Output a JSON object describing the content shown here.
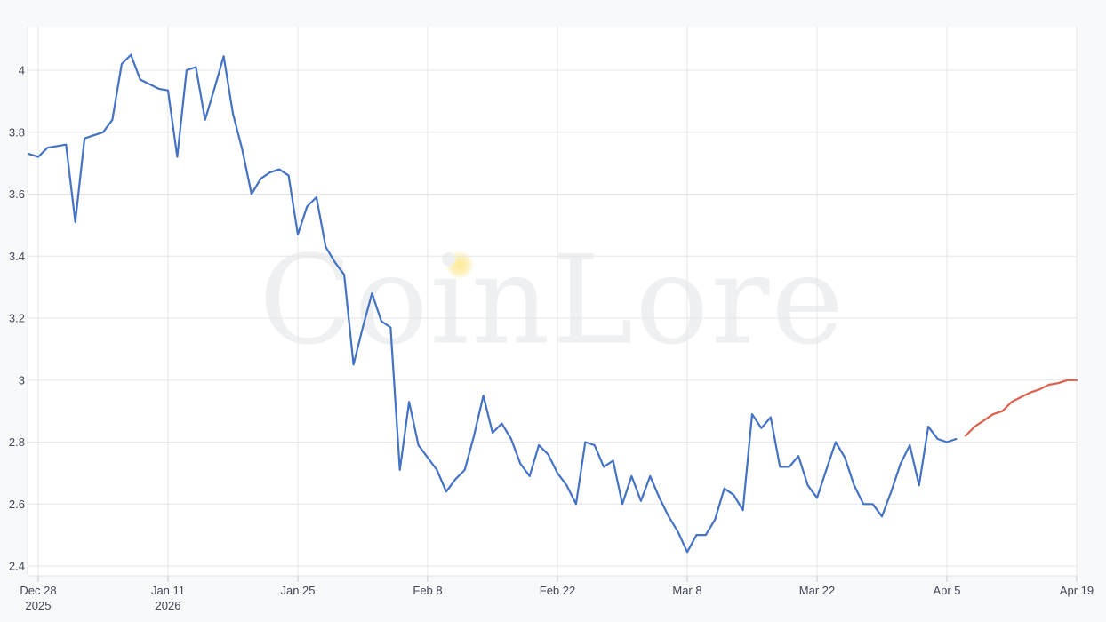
{
  "watermark": {
    "text": "CoinLore"
  },
  "colors": {
    "page_background": "#f8f9fa",
    "plot_background": "#ffffff",
    "grid": "#e6e6e6",
    "axis_line": "#e2e4e6",
    "tick": "#cccccc",
    "axis_text": "#3f4656",
    "historical_line": "#4472c4",
    "prediction_line": "#dd5f4c",
    "watermark_text": "#eef0f2",
    "watermark_dot": "#fae78c"
  },
  "chart_data": {
    "type": "line",
    "title": "",
    "xlabel": "",
    "ylabel": "",
    "grid": true,
    "legend": "none",
    "ylim": [
      2.37,
      4.14
    ],
    "x_days_total": 113,
    "x_ticks": [
      {
        "label": "Dec 28",
        "sublabel": "2025",
        "day": 1
      },
      {
        "label": "Jan 11",
        "sublabel": "2026",
        "day": 15
      },
      {
        "label": "Jan 25",
        "day": 29
      },
      {
        "label": "Feb 8",
        "day": 43
      },
      {
        "label": "Feb 22",
        "day": 57
      },
      {
        "label": "Mar 8",
        "day": 71
      },
      {
        "label": "Mar 22",
        "day": 85
      },
      {
        "label": "Apr 5",
        "day": 99
      },
      {
        "label": "Apr 19",
        "day": 113
      }
    ],
    "y_ticks": [
      {
        "label": "4",
        "value": 4.0
      },
      {
        "label": "3.8",
        "value": 3.8
      },
      {
        "label": "3.6",
        "value": 3.6
      },
      {
        "label": "3.4",
        "value": 3.4
      },
      {
        "label": "3.2",
        "value": 3.2
      },
      {
        "label": "3",
        "value": 3.0
      },
      {
        "label": "2.8",
        "value": 2.8
      },
      {
        "label": "2.6",
        "value": 2.6
      },
      {
        "label": "2.4",
        "value": 2.4
      }
    ],
    "series": [
      {
        "name": "historical-price",
        "color": "#4472c4",
        "start_day_index": 0,
        "values": [
          3.73,
          3.72,
          3.75,
          3.755,
          3.76,
          3.51,
          3.78,
          3.79,
          3.8,
          3.84,
          4.02,
          4.05,
          3.97,
          3.955,
          3.94,
          3.935,
          3.72,
          4.0,
          4.01,
          3.84,
          3.94,
          4.045,
          3.86,
          3.745,
          3.6,
          3.65,
          3.67,
          3.68,
          3.66,
          3.47,
          3.56,
          3.59,
          3.43,
          3.38,
          3.34,
          3.05,
          3.17,
          3.28,
          3.19,
          3.17,
          2.71,
          2.93,
          2.79,
          2.75,
          2.71,
          2.64,
          2.68,
          2.71,
          2.82,
          2.95,
          2.83,
          2.86,
          2.81,
          2.73,
          2.69,
          2.79,
          2.76,
          2.7,
          2.66,
          2.6,
          2.8,
          2.79,
          2.72,
          2.74,
          2.6,
          2.69,
          2.61,
          2.69,
          2.62,
          2.56,
          2.51,
          2.445,
          2.5,
          2.5,
          2.55,
          2.65,
          2.63,
          2.58,
          2.89,
          2.845,
          2.88,
          2.72,
          2.72,
          2.755,
          2.66,
          2.62,
          2.71,
          2.8,
          2.75,
          2.66,
          2.6,
          2.6,
          2.56,
          2.64,
          2.73,
          2.79,
          2.66,
          2.85,
          2.81,
          2.8,
          2.81
        ]
      },
      {
        "name": "predicted-price",
        "color": "#dd5f4c",
        "start_day_index": 101,
        "values": [
          2.82,
          2.85,
          2.87,
          2.89,
          2.9,
          2.93,
          2.945,
          2.96,
          2.97,
          2.985,
          2.99,
          3.0,
          3.0
        ]
      }
    ]
  }
}
